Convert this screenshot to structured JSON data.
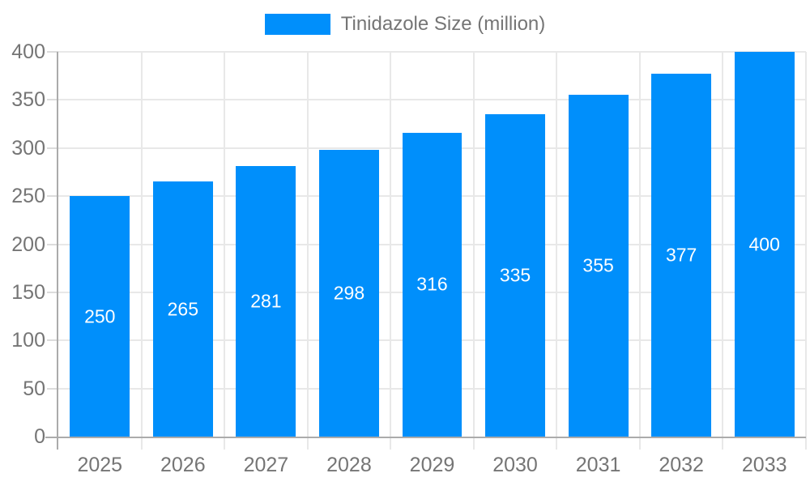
{
  "chart_data": {
    "type": "bar",
    "series_name": "Tinidazole Size (million)",
    "categories": [
      "2025",
      "2026",
      "2027",
      "2028",
      "2029",
      "2030",
      "2031",
      "2032",
      "2033"
    ],
    "values": [
      250,
      265,
      281,
      298,
      316,
      335,
      355,
      377,
      400
    ],
    "title": "",
    "xlabel": "",
    "ylabel": "",
    "ylim": [
      0,
      400
    ],
    "ytick_step": 50,
    "yticks": [
      0,
      50,
      100,
      150,
      200,
      250,
      300,
      350,
      400
    ],
    "grid": true,
    "legend_position": "top",
    "value_labels": "inside-center"
  },
  "legend": {
    "label": "Tinidazole Size (million)"
  },
  "colors": {
    "bar": "#008FFB",
    "grid": "#e8e8e8",
    "tick": "#dcdcdc",
    "axis": "#ababab",
    "label": "#757575",
    "value_label": "#ffffff",
    "background": "#ffffff"
  }
}
